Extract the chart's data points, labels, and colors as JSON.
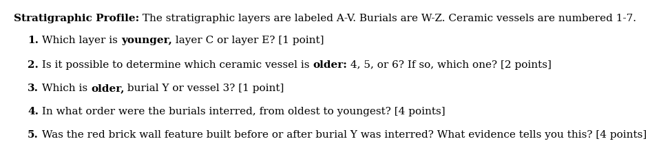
{
  "background_color": "#ffffff",
  "header_bold": "Stratigraphic Profile:",
  "header_normal": " The stratigraphic layers are labeled A-V. Burials are W-Z. Ceramic vessels are numbered 1-7.",
  "header_fontsize": 11.0,
  "questions": [
    {
      "number": "1.",
      "parts": [
        {
          "text": " Which layer is ",
          "bold": false
        },
        {
          "text": "younger,",
          "bold": true
        },
        {
          "text": " layer C or layer E? [1 point]",
          "bold": false
        }
      ]
    },
    {
      "number": "2.",
      "parts": [
        {
          "text": " Is it possible to determine which ceramic vessel is ",
          "bold": false
        },
        {
          "text": "older:",
          "bold": true
        },
        {
          "text": " 4, 5, or 6? If so, which one? [2 points]",
          "bold": false
        }
      ]
    },
    {
      "number": "3.",
      "parts": [
        {
          "text": " Which is ",
          "bold": false
        },
        {
          "text": "older,",
          "bold": true
        },
        {
          "text": " burial Y or vessel 3? [1 point]",
          "bold": false
        }
      ]
    },
    {
      "number": "4.",
      "parts": [
        {
          "text": " In what order were the burials interred, from oldest to youngest? [4 points]",
          "bold": false
        }
      ]
    },
    {
      "number": "5.",
      "parts": [
        {
          "text": " Was the red brick wall feature built before or after burial Y was interred? What evidence tells you this? [4 points]",
          "bold": false
        }
      ]
    }
  ],
  "question_fontsize": 11.0,
  "fig_width": 9.44,
  "fig_height": 2.38,
  "dpi": 100
}
